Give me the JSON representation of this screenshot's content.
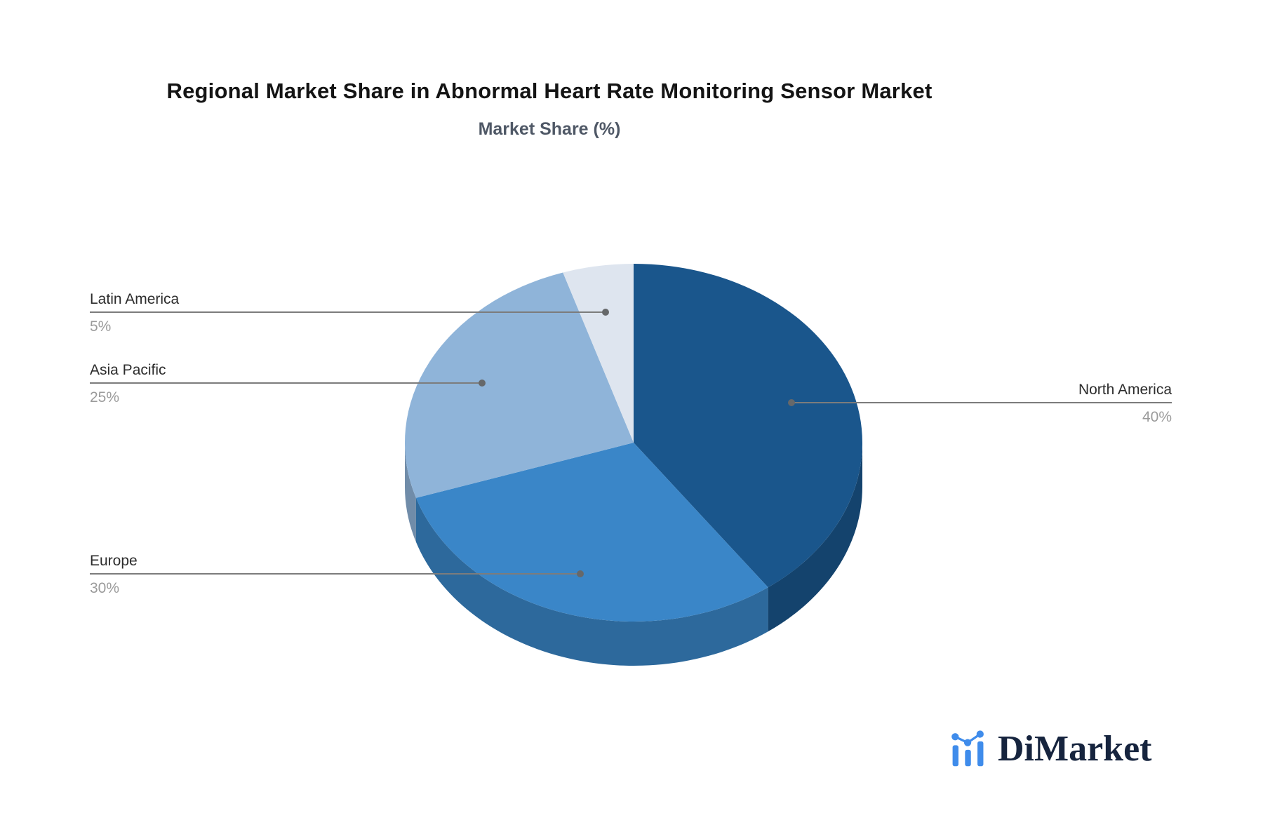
{
  "chart_data": {
    "type": "pie",
    "style": "3d",
    "title": "Regional Market Share in Abnormal Heart Rate Monitoring Sensor Market",
    "subtitle": "Market Share (%)",
    "unit": "%",
    "start_angle_deg": 0,
    "direction": "clockwise",
    "legend_position": "callout-labels",
    "segments": [
      {
        "label": "North America",
        "value": 40,
        "value_label": "40%",
        "color": "#1A568C"
      },
      {
        "label": "Europe",
        "value": 30,
        "value_label": "30%",
        "color": "#3A86C8"
      },
      {
        "label": "Asia Pacific",
        "value": 25,
        "value_label": "25%",
        "color": "#8FB4D9"
      },
      {
        "label": "Latin America",
        "value": 5,
        "value_label": "5%",
        "color": "#DEE5EF"
      }
    ]
  },
  "logo": {
    "text": "DiMarket",
    "icon": "bar-line-chart-icon",
    "icon_color": "#3F8CEB",
    "text_color": "#16243E"
  },
  "colors": {
    "background": "#FFFFFF",
    "title_text": "#141414",
    "subtitle_text": "#4F5866",
    "label_text": "#2D2D2D",
    "value_text": "#9B9B9B",
    "leader_line": "#7C7C7C",
    "leader_dot": "#66686A"
  }
}
